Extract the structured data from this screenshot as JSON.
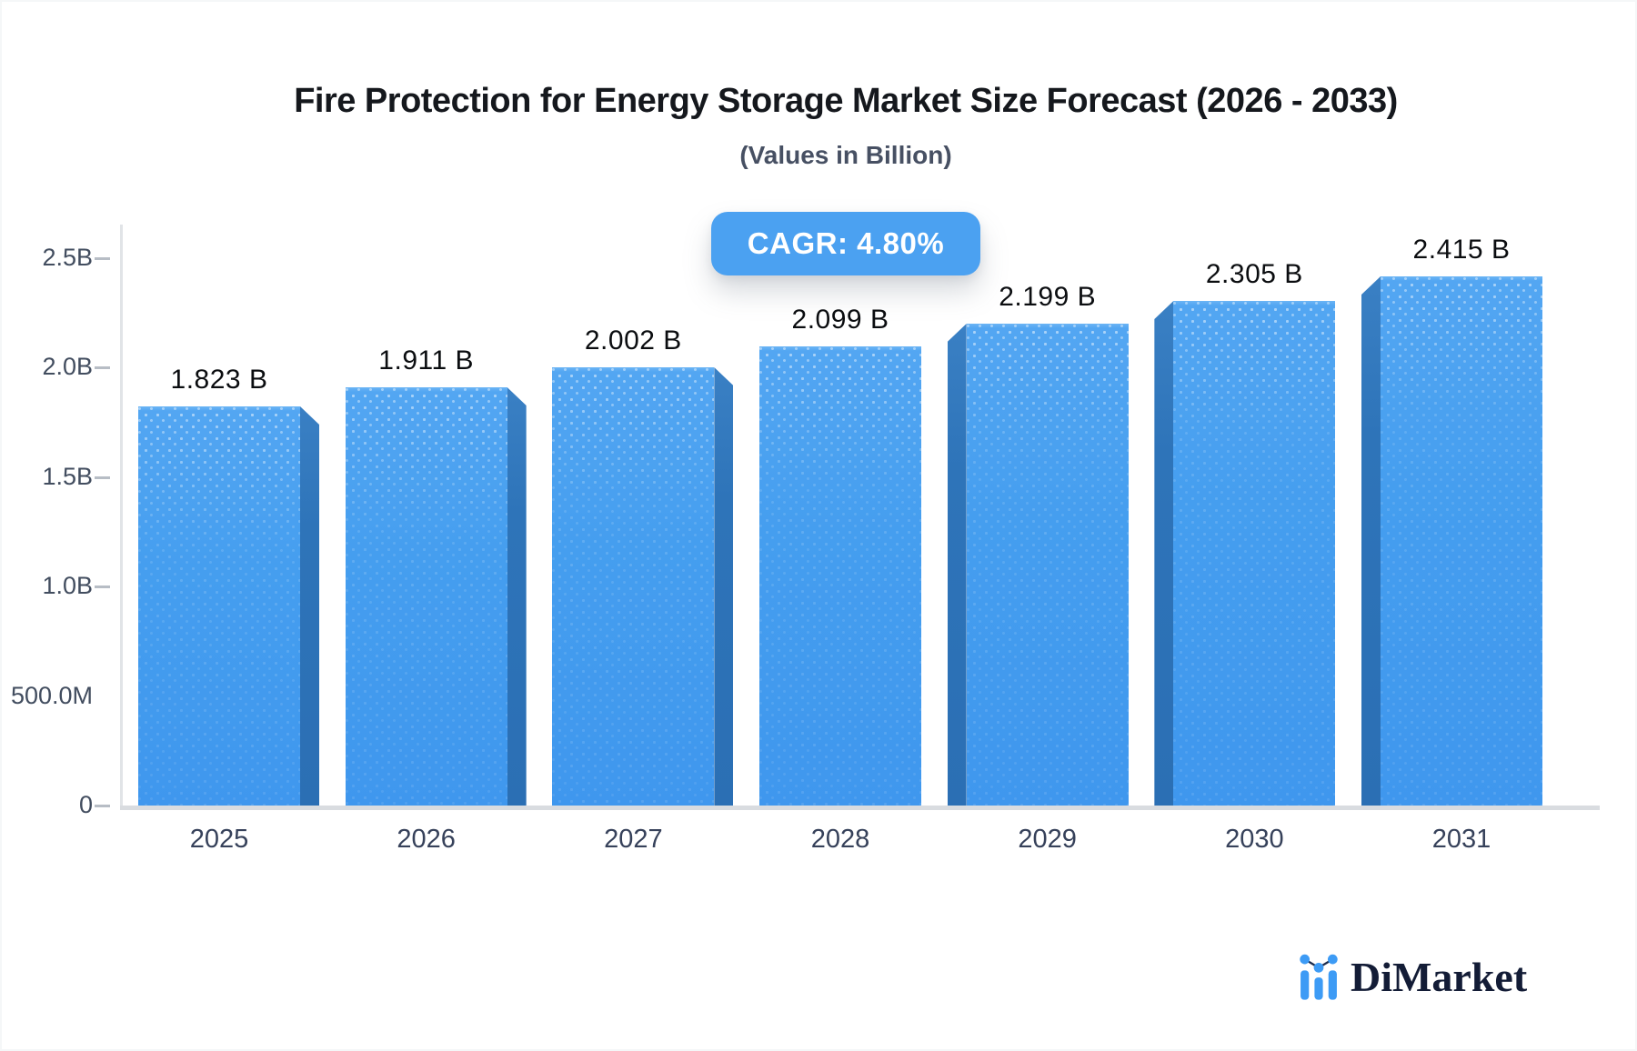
{
  "header": {
    "title": "Fire Protection for Energy Storage Market Size Forecast (2026 - 2033)",
    "subtitle": "(Values in Billion)",
    "cagr_badge": "CAGR: 4.80%"
  },
  "chart_data": {
    "type": "bar",
    "title": "Fire Protection for Energy Storage Market Size Forecast (2026 - 2033)",
    "subtitle": "(Values in Billion)",
    "annotation": "CAGR: 4.80%",
    "unit": "Billion",
    "categories": [
      "2025",
      "2026",
      "2027",
      "2028",
      "2029",
      "2030",
      "2031"
    ],
    "values": [
      1.823,
      1.911,
      2.002,
      2.099,
      2.199,
      2.305,
      2.415
    ],
    "bar_labels": [
      "1.823 B",
      "1.911 B",
      "2.002 B",
      "2.099 B",
      "2.199 B",
      "2.305 B",
      "2.415 B"
    ],
    "sides": [
      "right",
      "right",
      "right",
      "none",
      "left",
      "left",
      "left"
    ],
    "ylim": [
      0,
      2.5
    ],
    "yticks": [
      {
        "label": "2.5B",
        "value": 2.5,
        "dash": true
      },
      {
        "label": "2.0B",
        "value": 2.0,
        "dash": true
      },
      {
        "label": "1.5B",
        "value": 1.5,
        "dash": true
      },
      {
        "label": "1.0B",
        "value": 1.0,
        "dash": true
      },
      {
        "label": "500.0M",
        "value": 0.5,
        "dash": false
      },
      {
        "label": "0",
        "value": 0,
        "dash": true
      }
    ],
    "grid": false,
    "legend": false,
    "bar_color": "#459eef",
    "bar_side_color": "#2e74b9",
    "badge_color": "#4ba1f1"
  },
  "footer": {
    "brand": "DiMarket",
    "logo_icon": "mini-bar-chart-icon"
  }
}
